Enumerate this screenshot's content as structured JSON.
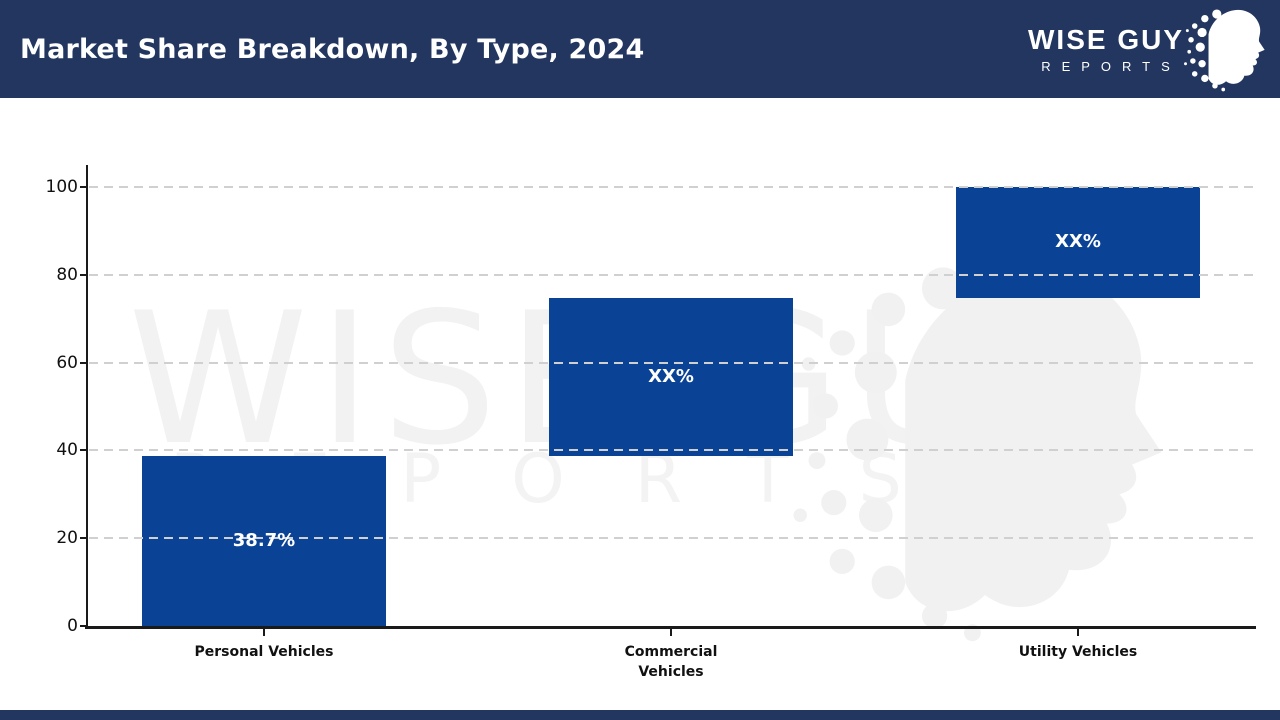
{
  "header": {
    "title": "Market Share Breakdown, By Type, 2024",
    "logo": {
      "brand_line1": "WISE GUY",
      "brand_line2": "REPORTS"
    }
  },
  "watermark": {
    "word_line1": "WISE GUY",
    "word_line2": "REPORTS"
  },
  "chart_data": {
    "type": "bar",
    "subtype": "floating-segment (waterfall-style market share)",
    "title": "Market Share Breakdown, By Type, 2024",
    "xlabel": "",
    "ylabel": "",
    "ylim": [
      0,
      100
    ],
    "yticks": [
      0,
      20,
      40,
      60,
      80,
      100
    ],
    "grid": "horizontal-dashed, drawn over bars",
    "legend": "none",
    "bar_color": "#0a4396",
    "value_label_color": "#ffffff",
    "categories": [
      "Personal Vehicles",
      "Commercial\nVehicles",
      "Utility Vehicles"
    ],
    "bars": [
      {
        "category": "Personal Vehicles",
        "category_display": "Personal Vehicles",
        "start": 0,
        "end": 38.7,
        "label": "38.7%"
      },
      {
        "category": "Commercial Vehicles",
        "category_display": "Commercial\nVehicles",
        "start": 38.7,
        "end": 74.8,
        "label": "XX%"
      },
      {
        "category": "Utility Vehicles",
        "category_display": "Utility Vehicles",
        "start": 74.8,
        "end": 100,
        "label": "XX%"
      }
    ]
  },
  "colors": {
    "banner": "#22365f",
    "bar": "#0a4396",
    "axis": "#1a1a1a",
    "grid": "#d0d0d0",
    "watermark": "#f2f2f2"
  }
}
